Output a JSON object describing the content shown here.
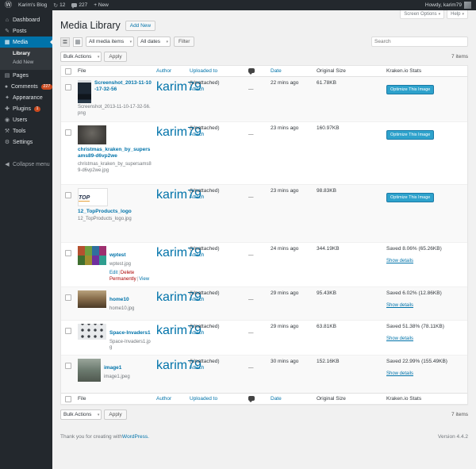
{
  "admin_bar": {
    "site_name": "Karim's Blog",
    "updates_count": "12",
    "comments_count": "227",
    "new_label": "+ New",
    "howdy": "Howdy, karim79"
  },
  "icons": {
    "wp_logo": "Ⓦ",
    "updates": "↻",
    "dashboard": "⌂",
    "posts": "✎",
    "media": "▦",
    "pages": "▤",
    "comments": "●",
    "appearance": "✦",
    "plugins": "✚",
    "users": "◉",
    "tools": "⚒",
    "settings": "⚙",
    "collapse": "◀",
    "list_view": "≣",
    "grid_view": "▦",
    "dropdown_arrow": "▾"
  },
  "sidebar": {
    "items": [
      {
        "label": "Dashboard"
      },
      {
        "label": "Posts"
      },
      {
        "label": "Media"
      },
      {
        "label": "Pages"
      },
      {
        "label": "Comments",
        "badge": "227"
      },
      {
        "label": "Appearance"
      },
      {
        "label": "Plugins",
        "badge": "1"
      },
      {
        "label": "Users"
      },
      {
        "label": "Tools"
      },
      {
        "label": "Settings"
      }
    ],
    "media_submenu": {
      "library": "Library",
      "add_new": "Add New"
    },
    "collapse_label": "Collapse menu"
  },
  "page": {
    "title": "Media Library",
    "add_new_button": "Add New",
    "screen_options": "Screen Options",
    "help": "Help"
  },
  "toolbar": {
    "media_filter": "All media items",
    "date_filter": "All dates",
    "filter_button": "Filter",
    "search_placeholder": "Search"
  },
  "bulk": {
    "label": "Bulk Actions",
    "apply": "Apply",
    "item_count": "7 items"
  },
  "ui": {
    "separator": "|"
  },
  "table": {
    "headers": {
      "file": "File",
      "author": "Author",
      "uploaded_to": "Uploaded to",
      "date": "Date",
      "original_size": "Original Size",
      "kraken": "Kraken.io Stats"
    },
    "rows": [
      {
        "title": "Screenshot_2013-11-10-17-32-56",
        "filename": "Screenshot_2013-11-10-17-32-56.png",
        "author": "karim79",
        "uploaded_to": "(Unattached)",
        "attach": "Attach",
        "comments": "—",
        "date": "22 mins ago",
        "size": "61.78KB",
        "optimize": "Optimize This Image"
      },
      {
        "title": "christmas_kraken_by_supersams89-d6vp2we",
        "filename": "christmas_kraken_by_supersams89-d6vp2we.jpg",
        "author": "karim79",
        "uploaded_to": "(Unattached)",
        "attach": "Attach",
        "comments": "—",
        "date": "23 mins ago",
        "size": "160.97KB",
        "optimize": "Optimize This Image"
      },
      {
        "title": "12_TopProducts_logo",
        "filename": "12_TopProducts_logo.jpg",
        "thumb_text": "TOP",
        "author": "karim79",
        "uploaded_to": "(Unattached)",
        "attach": "Attach",
        "comments": "—",
        "date": "23 mins ago",
        "size": "98.83KB",
        "optimize": "Optimize This Image"
      },
      {
        "title": "wptest",
        "filename": "wptest.jpg",
        "actions": {
          "edit": "Edit",
          "delete": "Delete Permanently",
          "view": "View"
        },
        "author": "karim79",
        "uploaded_to": "(Unattached)",
        "attach": "Attach",
        "comments": "—",
        "date": "24 mins ago",
        "size": "344.19KB",
        "saved": "Saved 8.06% (65.26KB)",
        "show_details": "Show details"
      },
      {
        "title": "home10",
        "filename": "home10.jpg",
        "author": "karim79",
        "uploaded_to": "(Unattached)",
        "attach": "Attach",
        "comments": "—",
        "date": "29 mins ago",
        "size": "95.43KB",
        "saved": "Saved 6.02% (12.86KB)",
        "show_details": "Show details"
      },
      {
        "title": "Space-Invaders1",
        "filename": "Space-Invaders1.jpg",
        "author": "karim79",
        "uploaded_to": "(Unattached)",
        "attach": "Attach",
        "comments": "—",
        "date": "29 mins ago",
        "size": "63.81KB",
        "saved": "Saved 51.38% (78.11KB)",
        "show_details": "Show details"
      },
      {
        "title": "image1",
        "filename": "image1.jpeg",
        "author": "karim79",
        "uploaded_to": "(Unattached)",
        "attach": "Attach",
        "comments": "—",
        "date": "30 mins ago",
        "size": "152.16KB",
        "saved": "Saved 22.99% (155.49KB)",
        "show_details": "Show details"
      }
    ]
  },
  "footer": {
    "thanks_prefix": "Thank you for creating with ",
    "thanks_link": "WordPress.",
    "version": "Version 4.4.2"
  },
  "colors": {
    "accent_blue": "#0073aa",
    "optimize_button_blue": "#2ea2cc",
    "admin_bar_bg": "#23282d",
    "badge_red": "#ca4a1f"
  }
}
